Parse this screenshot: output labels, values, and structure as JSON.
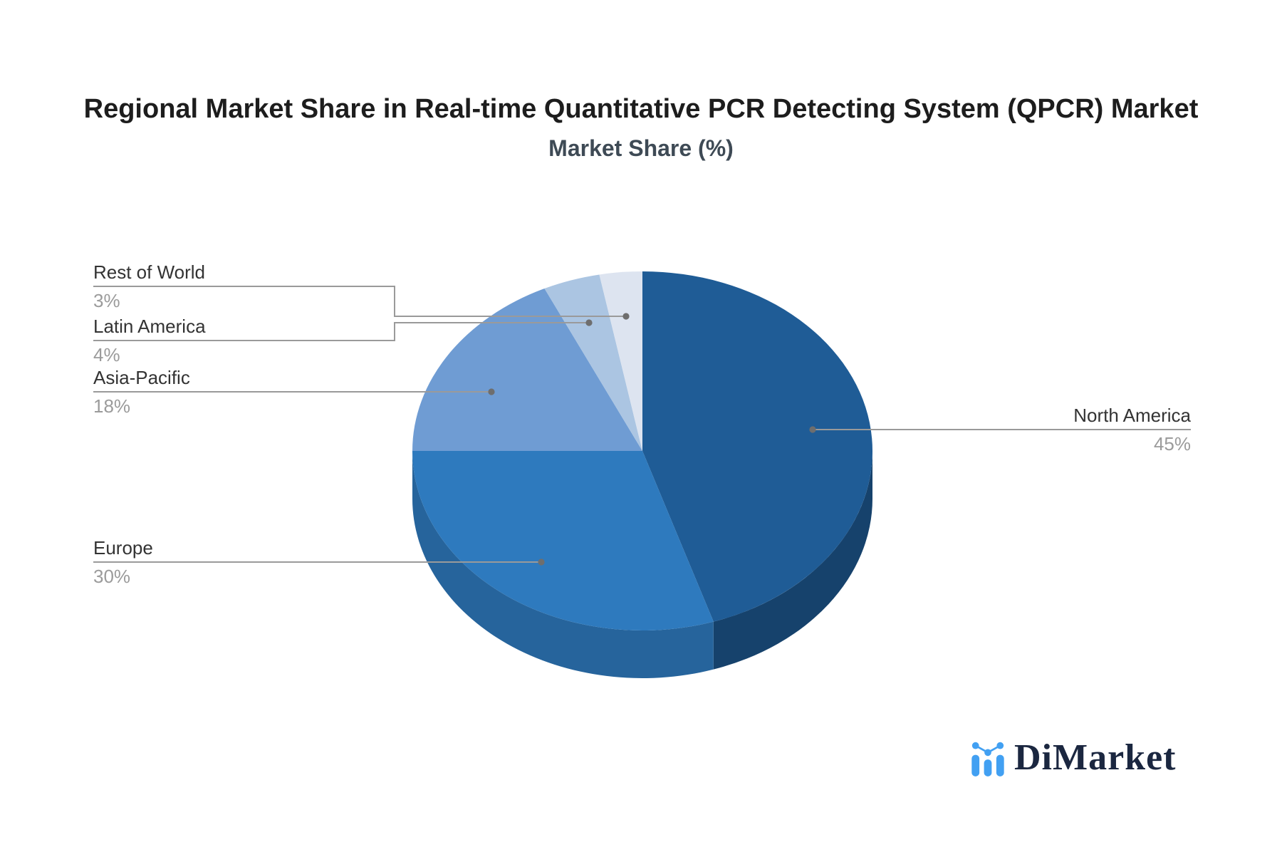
{
  "header": {
    "title": "Regional Market Share in Real-time Quantitative PCR Detecting System (QPCR) Market",
    "subtitle": "Market Share (%)"
  },
  "chart_data": {
    "type": "pie",
    "title": "Regional Market Share in Real-time Quantitative PCR Detecting System (QPCR) Market",
    "subtitle": "Market Share (%)",
    "unit": "%",
    "style": {
      "effect": "3d",
      "start_angle_deg": 0,
      "direction": "clockwise",
      "leader_line_color": "#9a9a9a",
      "leader_dot_color": "#6e6e6e",
      "label_color": "#333333",
      "percent_color": "#9b9b9b"
    },
    "slices": [
      {
        "label": "North America",
        "value": 45,
        "display": "45%",
        "color": "#1f5c96",
        "side_color": "#16426c"
      },
      {
        "label": "Europe",
        "value": 30,
        "display": "30%",
        "color": "#2e7abe",
        "side_color": "#26649c"
      },
      {
        "label": "Asia-Pacific",
        "value": 18,
        "display": "18%",
        "color": "#6f9cd3",
        "side_color": "#54779e"
      },
      {
        "label": "Latin America",
        "value": 4,
        "display": "4%",
        "color": "#abc5e2",
        "side_color": "#8094aa"
      },
      {
        "label": "Rest of World",
        "value": 3,
        "display": "3%",
        "color": "#dde4f0",
        "side_color": "#a6abb4"
      }
    ]
  },
  "branding": {
    "logo_text": "DiMarket",
    "logo_icon": "bar-line-chart-icon",
    "logo_text_color": "#1b2740",
    "logo_icon_color": "#42a0f2"
  }
}
